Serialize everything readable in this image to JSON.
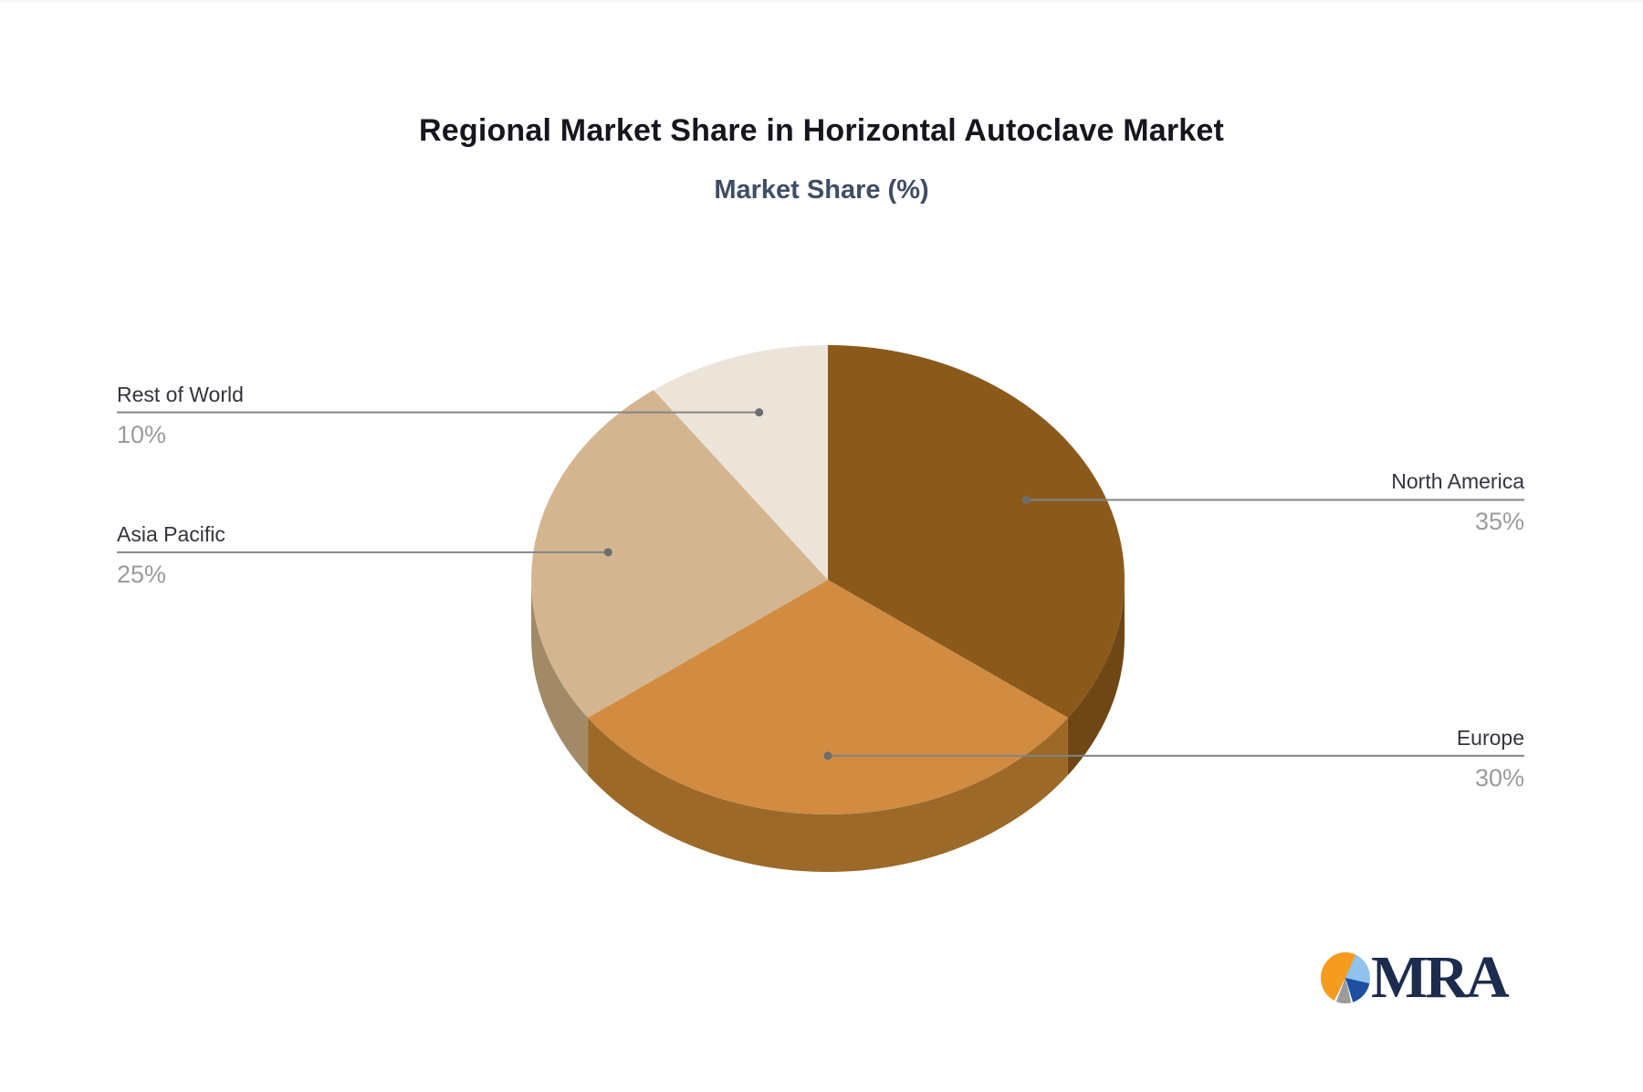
{
  "chart_data": {
    "type": "pie",
    "style": "3d-pie",
    "title": "Regional Market Share in Horizontal Autoclave Market",
    "subtitle": "Market Share (%)",
    "value_unit": "%",
    "start_angle": "12-oclock",
    "direction": "clockwise",
    "legend_position": "none",
    "slices": [
      {
        "label": "North America",
        "value": 35,
        "pct": "35%",
        "color": "#8B5A1B",
        "side_color": "#6F4715",
        "label_side": "right"
      },
      {
        "label": "Europe",
        "value": 30,
        "pct": "30%",
        "color": "#D18C42",
        "side_color": "#9C6928",
        "label_side": "right"
      },
      {
        "label": "Asia Pacific",
        "value": 25,
        "pct": "25%",
        "color": "#D3B690",
        "side_color": "#A28A68",
        "label_side": "left"
      },
      {
        "label": "Rest of World",
        "value": 10,
        "pct": "10%",
        "color": "#EDE4D9",
        "side_color": "#C4B6A5",
        "label_side": "left"
      }
    ],
    "label_line_color": "#848484",
    "label_dot_color": "#6d6d6d",
    "label_name_color": "#34343c",
    "label_pct_color": "#9b9b9b",
    "title_color": "#16161e",
    "subtitle_color": "#3f4e63"
  },
  "logo": {
    "text": "MRA",
    "text_color": "#1c2b4e",
    "icon": "pie-chart-icon",
    "icon_colors": [
      "#f59c1f",
      "#90c2ec",
      "#1d4f9e",
      "#999b9d"
    ]
  }
}
